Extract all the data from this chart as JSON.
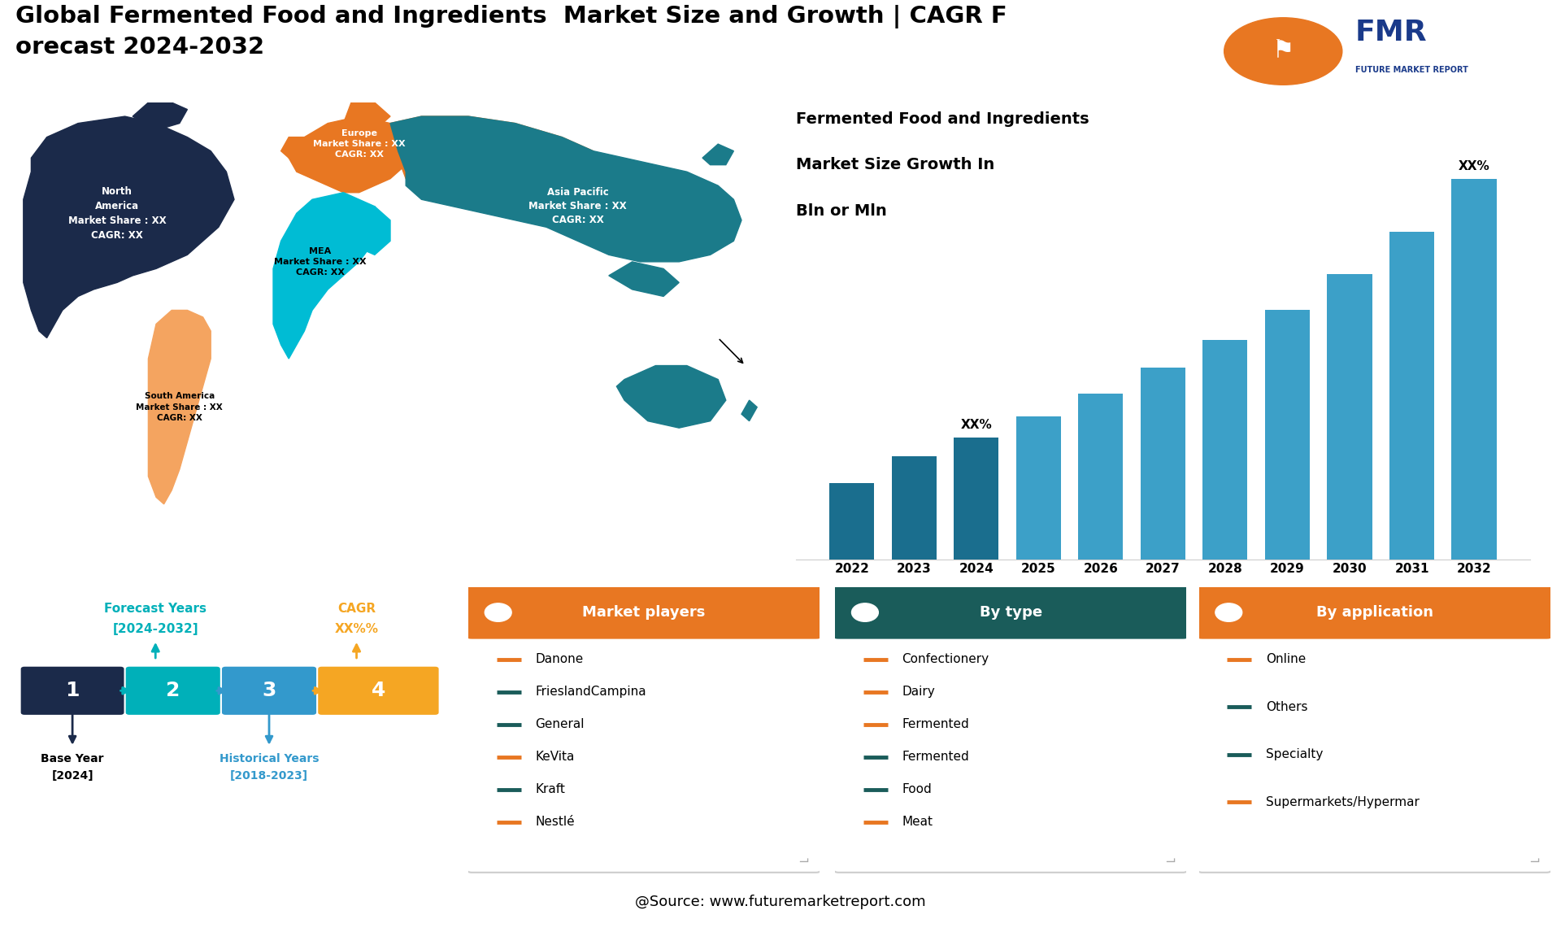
{
  "title": "Global Fermented Food and Ingredients  Market Size and Growth | CAGR F\norecast 2024-2032",
  "title_fontsize": 21,
  "bg_color": "#ffffff",
  "chart_title_line1": "Fermented Food and Ingredients",
  "chart_title_line2": "Market Size Growth In",
  "chart_title_line3": "Bln or Mln",
  "bar_years": [
    "2022",
    "2023",
    "2024",
    "2025",
    "2026",
    "2027",
    "2028",
    "2029",
    "2030",
    "2031",
    "2032"
  ],
  "bar_values": [
    1.0,
    1.35,
    1.6,
    1.88,
    2.18,
    2.52,
    2.88,
    3.28,
    3.75,
    4.3,
    5.0
  ],
  "bar_color_dark": "#1a6e8e",
  "bar_color_light": "#3ca0c8",
  "bar_annotation_2024": "XX%",
  "bar_annotation_2032": "XX%",
  "forecast_label_line1": "Forecast Years",
  "forecast_label_line2": "[2024-2032]",
  "forecast_color": "#00b0b9",
  "cagr_line1": "CAGR",
  "cagr_line2": "XX%%",
  "cagr_color": "#f5a623",
  "base_year_line1": "Base Year",
  "base_year_line2": "[2024]",
  "historical_line1": "Historical Years",
  "historical_line2": "[2018-2023]",
  "historical_color": "#3399cc",
  "seg_colors": [
    "#1b2a4a",
    "#00b0b9",
    "#3399cc",
    "#f5a623"
  ],
  "seg_labels": [
    "1",
    "2",
    "3",
    "4"
  ],
  "market_players_header": "Market players",
  "market_players_color": "#e87722",
  "market_players": [
    "Danone",
    "FrieslandCampina",
    "General",
    "KeVita",
    "Kraft",
    "Nestlé"
  ],
  "mp_dot_colors": [
    "#e87722",
    "#1a5c5a",
    "#1a5c5a",
    "#e87722",
    "#1a5c5a",
    "#e87722"
  ],
  "by_type_header": "By type",
  "by_type_color": "#1a5c5a",
  "by_type": [
    "Confectionery",
    "Dairy",
    "Fermented",
    "Fermented",
    "Food",
    "Meat"
  ],
  "bt_dot_colors": [
    "#e87722",
    "#e87722",
    "#e87722",
    "#1a5c5a",
    "#1a5c5a",
    "#e87722"
  ],
  "by_application_header": "By application",
  "by_application_color": "#e87722",
  "by_application": [
    "Online",
    "Others",
    "Specialty",
    "Supermarkets/Hypermar"
  ],
  "ba_dot_colors": [
    "#e87722",
    "#1a5c5a",
    "#1a5c5a",
    "#e87722"
  ],
  "source_text": "@Source: www.futuremarketreport.com",
  "na_color": "#1b2a4a",
  "sa_color": "#f4a460",
  "eu_color": "#e87722",
  "mea_color": "#00bcd4",
  "ap_color": "#1b7b8a"
}
